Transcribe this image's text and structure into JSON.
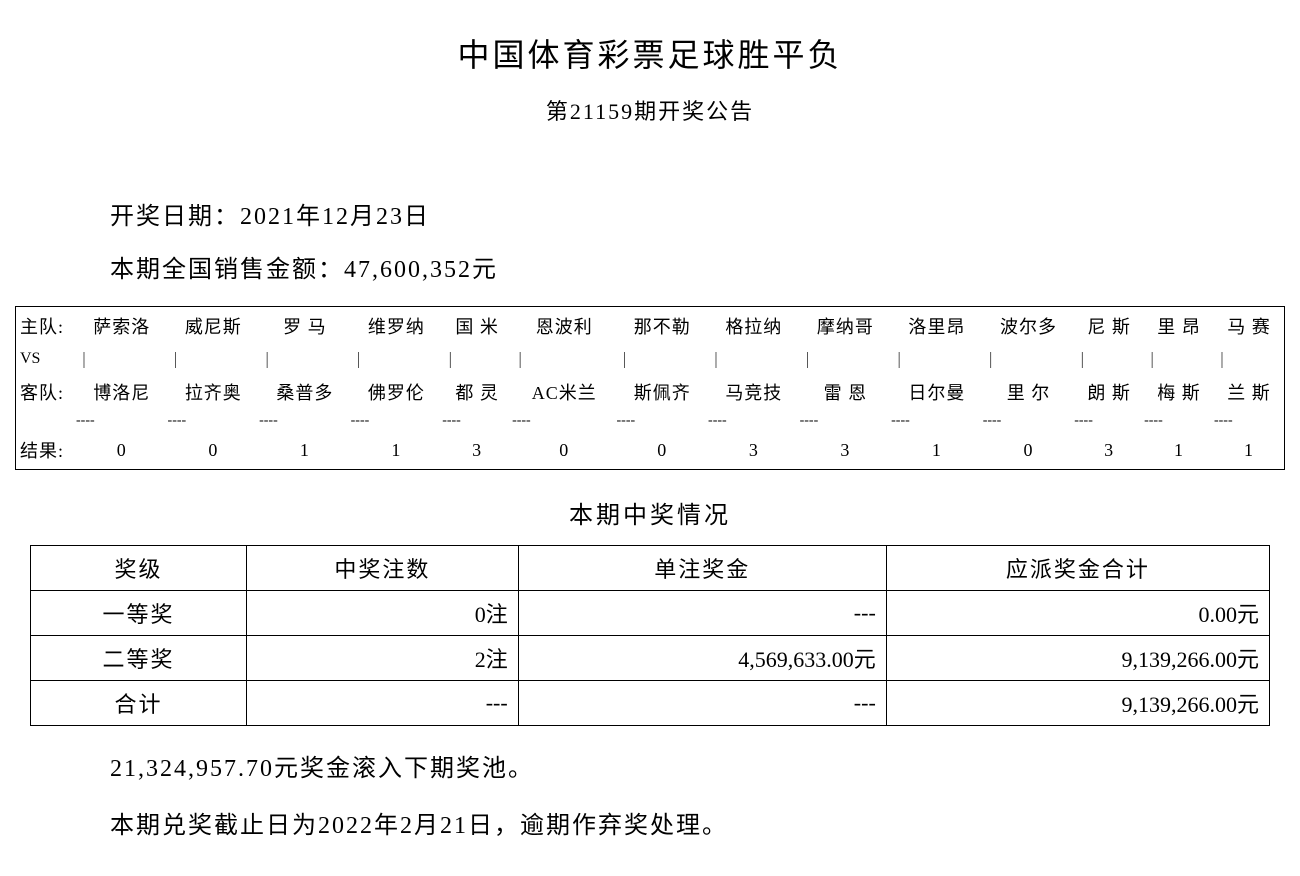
{
  "header": {
    "title": "中国体育彩票足球胜平负",
    "subtitle": "第21159期开奖公告"
  },
  "info": {
    "draw_date_label": "开奖日期：",
    "draw_date_value": "2021年12月23日",
    "sales_label": "本期全国销售金额：",
    "sales_value": "47,600,352元"
  },
  "matches": {
    "home_label": "主队:",
    "vs_label": "VS",
    "away_label": "客队:",
    "result_label": "结果:",
    "home_teams": [
      "萨索洛",
      "威尼斯",
      "罗 马",
      "维罗纳",
      "国 米",
      "恩波利",
      "那不勒",
      "格拉纳",
      "摩纳哥",
      "洛里昂",
      "波尔多",
      "尼 斯",
      "里 昂",
      "马 赛"
    ],
    "away_teams": [
      "博洛尼",
      "拉齐奥",
      "桑普多",
      "佛罗伦",
      "都 灵",
      "AC米兰",
      "斯佩齐",
      "马竞技",
      "雷 恩",
      "日尔曼",
      "里 尔",
      "朗 斯",
      "梅 斯",
      "兰 斯"
    ],
    "results": [
      "0",
      "0",
      "1",
      "1",
      "3",
      "0",
      "0",
      "3",
      "3",
      "1",
      "0",
      "3",
      "1",
      "1"
    ],
    "vline": "｜",
    "dash": "----"
  },
  "prize_section": {
    "title": "本期中奖情况",
    "columns": [
      "奖级",
      "中奖注数",
      "单注奖金",
      "应派奖金合计"
    ],
    "rows": [
      {
        "level": "一等奖",
        "count": "0注",
        "unit": "---",
        "total": "0.00元"
      },
      {
        "level": "二等奖",
        "count": "2注",
        "unit": "4,569,633.00元",
        "total": "9,139,266.00元"
      },
      {
        "level": "合计",
        "count": "---",
        "unit": "---",
        "total": "9,139,266.00元"
      }
    ]
  },
  "footer": {
    "rollover": "21,324,957.70元奖金滚入下期奖池。",
    "deadline": "本期兑奖截止日为2022年2月21日，逾期作弃奖处理。"
  },
  "colors": {
    "background": "#ffffff",
    "text": "#000000",
    "border": "#000000"
  },
  "typography": {
    "font_family": "SimSun",
    "title_size": 32,
    "body_size": 24,
    "table_size": 22
  }
}
